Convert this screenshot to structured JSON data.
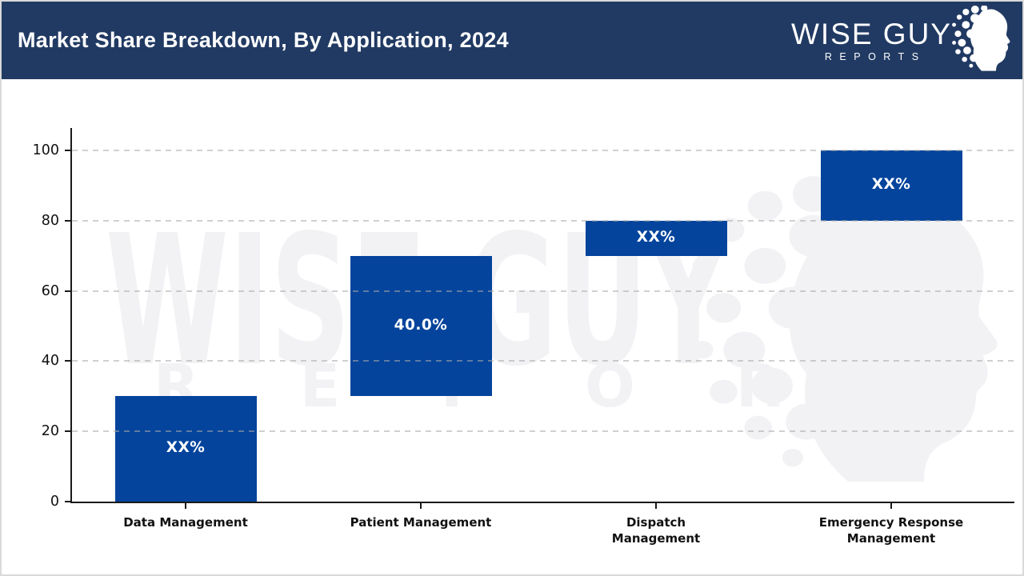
{
  "header": {
    "title": "Market Share Breakdown, By Application, 2024",
    "logo": {
      "line1": "WISE GUY",
      "line2": "REPORTS"
    }
  },
  "watermark": {
    "line1": "WISE GUY",
    "line2": "R E P O R T S"
  },
  "colors": {
    "header_bg": "#213a63",
    "bar": "#04449c",
    "watermark": "#f2f2f5",
    "grid": "#aaaaaa",
    "axis": "#1a1a1a"
  },
  "chart_data": {
    "type": "bar",
    "subtype": "waterfall",
    "title": "Market Share Breakdown, By Application, 2024",
    "xlabel": "",
    "ylabel": "",
    "ylim": [
      0,
      100
    ],
    "yticks": [
      0,
      20,
      40,
      60,
      80,
      100
    ],
    "grid": "horizontal-dashed",
    "legend": "none",
    "categories": [
      "Data Management",
      "Patient Management",
      "Dispatch Management",
      "Emergency Response Management"
    ],
    "category_label_lines": [
      [
        "Data Management"
      ],
      [
        "Patient Management"
      ],
      [
        "Dispatch",
        "Management"
      ],
      [
        "Emergency Response",
        "Management"
      ]
    ],
    "series": [
      {
        "name": "Market Share (%)",
        "segments": [
          {
            "category": "Data Management",
            "start": 0,
            "end": 30,
            "label": "XX%"
          },
          {
            "category": "Patient Management",
            "start": 30,
            "end": 70,
            "label": "40.0%"
          },
          {
            "category": "Dispatch Management",
            "start": 70,
            "end": 80,
            "label": "XX%"
          },
          {
            "category": "Emergency Response Management",
            "start": 80,
            "end": 100,
            "label": "XX%"
          }
        ]
      }
    ]
  }
}
